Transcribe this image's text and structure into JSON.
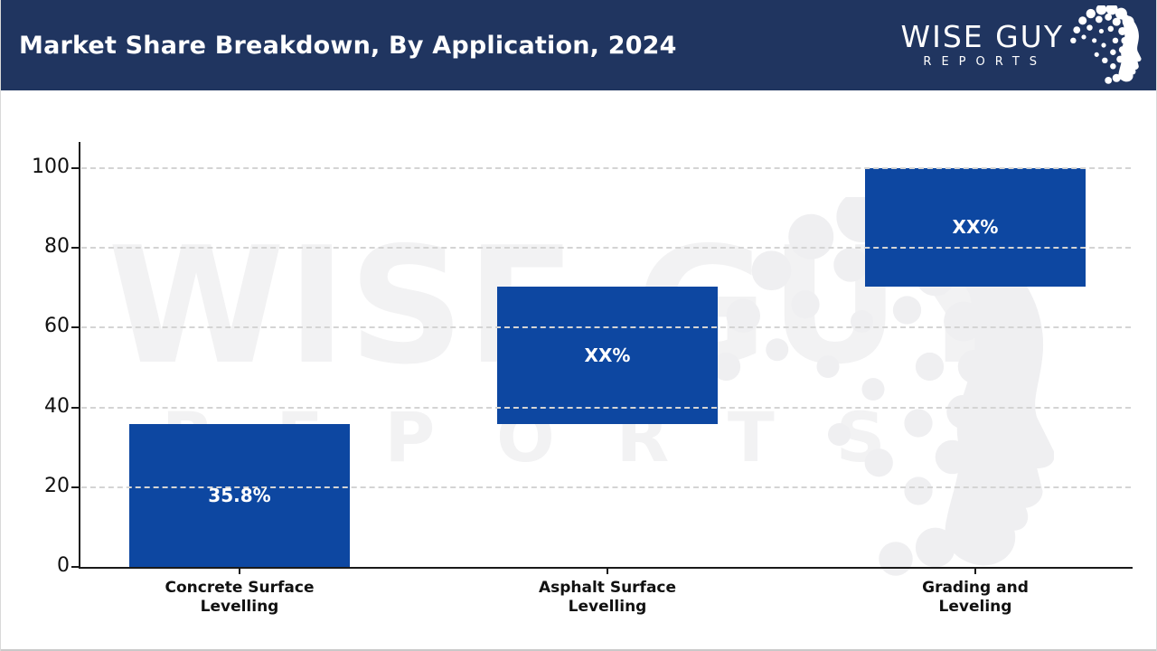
{
  "header": {
    "title": "Market Share Breakdown, By Application, 2024",
    "logo_line1": "WISE GUY",
    "logo_line2": "REPORTS"
  },
  "watermark": {
    "line1": "WISE GUY",
    "line2": "REPORTS"
  },
  "chart_data": {
    "type": "bar",
    "subtype": "waterfall",
    "title": "Market Share Breakdown, By Application, 2024",
    "categories": [
      "Concrete Surface Levelling",
      "Asphalt Surface Levelling",
      "Grading and Leveling"
    ],
    "category_lines": [
      [
        "Concrete Surface",
        "Levelling"
      ],
      [
        "Asphalt Surface",
        "Levelling"
      ],
      [
        "Grading and",
        "Leveling"
      ]
    ],
    "series": [
      {
        "name": "Concrete Surface Levelling",
        "start": 0,
        "end": 35.8,
        "label": "35.8%"
      },
      {
        "name": "Asphalt Surface Levelling",
        "start": 35.8,
        "end": 70.3,
        "label": "XX%"
      },
      {
        "name": "Grading and Leveling",
        "start": 70.3,
        "end": 100,
        "label": "XX%"
      }
    ],
    "yticks": [
      0,
      20,
      40,
      60,
      80,
      100
    ],
    "ylim": [
      0,
      106
    ],
    "xlabel": "",
    "ylabel": "",
    "grid": "horizontal-dashed",
    "legend": "none",
    "bar_color": "#0d47a1",
    "bar_label_color": "#ffffff",
    "axis_color": "#1a1a1a",
    "gridline_color": "#d4d4d4",
    "header_color": "#203560"
  }
}
